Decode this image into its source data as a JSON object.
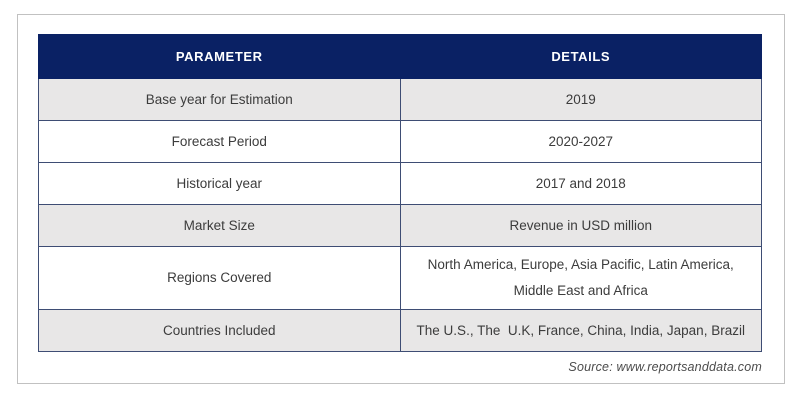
{
  "table": {
    "headers": [
      "PARAMETER",
      "DETAILS"
    ],
    "rows": [
      {
        "parameter": "Base year for Estimation",
        "details": "2019",
        "shaded": true
      },
      {
        "parameter": "Forecast Period",
        "details": "2020-2027",
        "shaded": false
      },
      {
        "parameter": "Historical year",
        "details": "2017 and 2018",
        "shaded": false
      },
      {
        "parameter": "Market Size",
        "details": "Revenue in USD million",
        "shaded": true
      },
      {
        "parameter": "Regions Covered",
        "details": "North America, Europe, Asia Pacific, Latin America, Middle East and Africa",
        "shaded": false
      },
      {
        "parameter": "Countries Included",
        "details": "The U.S., The  U.K, France, China, India, Japan, Brazil",
        "shaded": true
      }
    ]
  },
  "source": {
    "text": "Source: www.reportsanddata.com"
  },
  "colors": {
    "header_bg": "#0a2164",
    "header_text": "#ffffff",
    "shaded_row_bg": "#e8e7e7",
    "border": "#3e4d74",
    "body_text": "#3c3c3c",
    "source_text": "#4c4c4c",
    "card_border": "#c1c1c1"
  }
}
